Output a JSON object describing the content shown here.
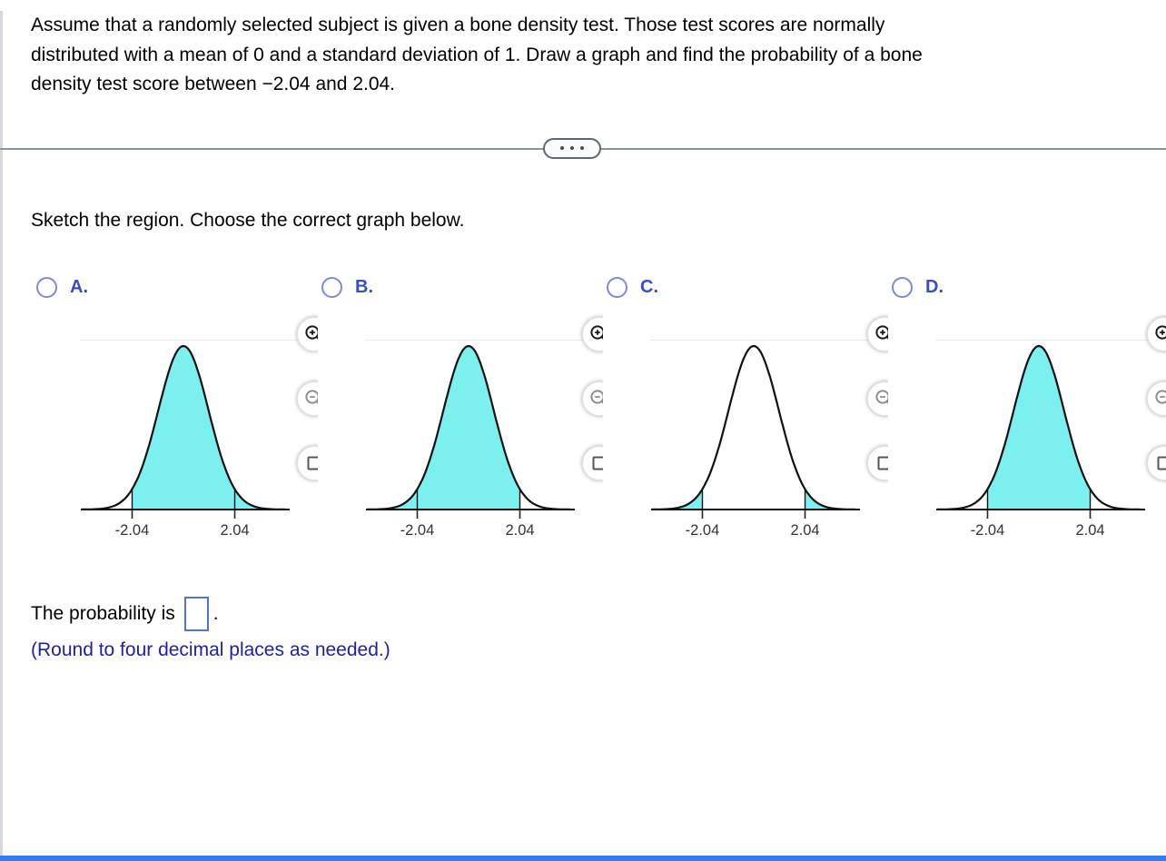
{
  "problem": {
    "lines": [
      "Assume that a randomly selected subject is given a bone density test. Those test scores are normally",
      "distributed with a mean of 0 and a standard deviation of 1. Draw a graph and find the probability of a bone",
      "density test score between −2.04 and 2.04."
    ]
  },
  "prompt": "Sketch the region. Choose the correct graph below.",
  "options": [
    {
      "label": "A.",
      "shade": "right-of-neg",
      "shaded_region": "x > -2.04",
      "selected": false
    },
    {
      "label": "B.",
      "shade": "left-of-pos",
      "shaded_region": "x < 2.04",
      "selected": false
    },
    {
      "label": "C.",
      "shade": "tails",
      "shaded_region": "x < -2.04 or x > 2.04",
      "selected": false
    },
    {
      "label": "D.",
      "shade": "between",
      "shaded_region": "-2.04 < x < 2.04",
      "selected": false
    }
  ],
  "graph": {
    "tick_labels": [
      "-2.04",
      "2.04"
    ],
    "tick_values": [
      -2.04,
      2.04
    ],
    "fill_color": "#7cf0ee",
    "curve_color": "#111111",
    "label_color": "#333333"
  },
  "chart_data": [
    {
      "type": "area",
      "subtype": "standard-normal-curve",
      "option": "A",
      "mean": 0,
      "sd": 1,
      "x_ticks": [
        -2.04,
        2.04
      ],
      "tick_labels": [
        "-2.04",
        "2.04"
      ],
      "shaded_region": "x > -2.04",
      "fill": "#7cf0ee"
    },
    {
      "type": "area",
      "subtype": "standard-normal-curve",
      "option": "B",
      "mean": 0,
      "sd": 1,
      "x_ticks": [
        -2.04,
        2.04
      ],
      "tick_labels": [
        "-2.04",
        "2.04"
      ],
      "shaded_region": "x < 2.04",
      "fill": "#7cf0ee"
    },
    {
      "type": "area",
      "subtype": "standard-normal-curve",
      "option": "C",
      "mean": 0,
      "sd": 1,
      "x_ticks": [
        -2.04,
        2.04
      ],
      "tick_labels": [
        "-2.04",
        "2.04"
      ],
      "shaded_region": "x < -2.04 or x > 2.04",
      "fill": "#7cf0ee"
    },
    {
      "type": "area",
      "subtype": "standard-normal-curve",
      "option": "D",
      "mean": 0,
      "sd": 1,
      "x_ticks": [
        -2.04,
        2.04
      ],
      "tick_labels": [
        "-2.04",
        "2.04"
      ],
      "shaded_region": "-2.04 < x < 2.04",
      "fill": "#7cf0ee"
    }
  ],
  "graph_tools": {
    "zoom_in_icon": "magnifier-plus",
    "zoom_out_icon": "magnifier-minus",
    "copy_icon": "square-outline"
  },
  "divider": {
    "ellipsis_icon": "three-dots"
  },
  "answer": {
    "prefix": "The probability is",
    "value": "",
    "suffix": ".",
    "note": "(Round to four decimal places as needed.)"
  },
  "colors": {
    "option_label_blue": "#3a4ec4",
    "note_blue": "#2020a6",
    "shade_cyan": "#7cf0ee",
    "divider_gray": "#8b949c",
    "bottom_bar_blue": "#2e7cf6",
    "answer_box_border": "#4f74d9"
  }
}
